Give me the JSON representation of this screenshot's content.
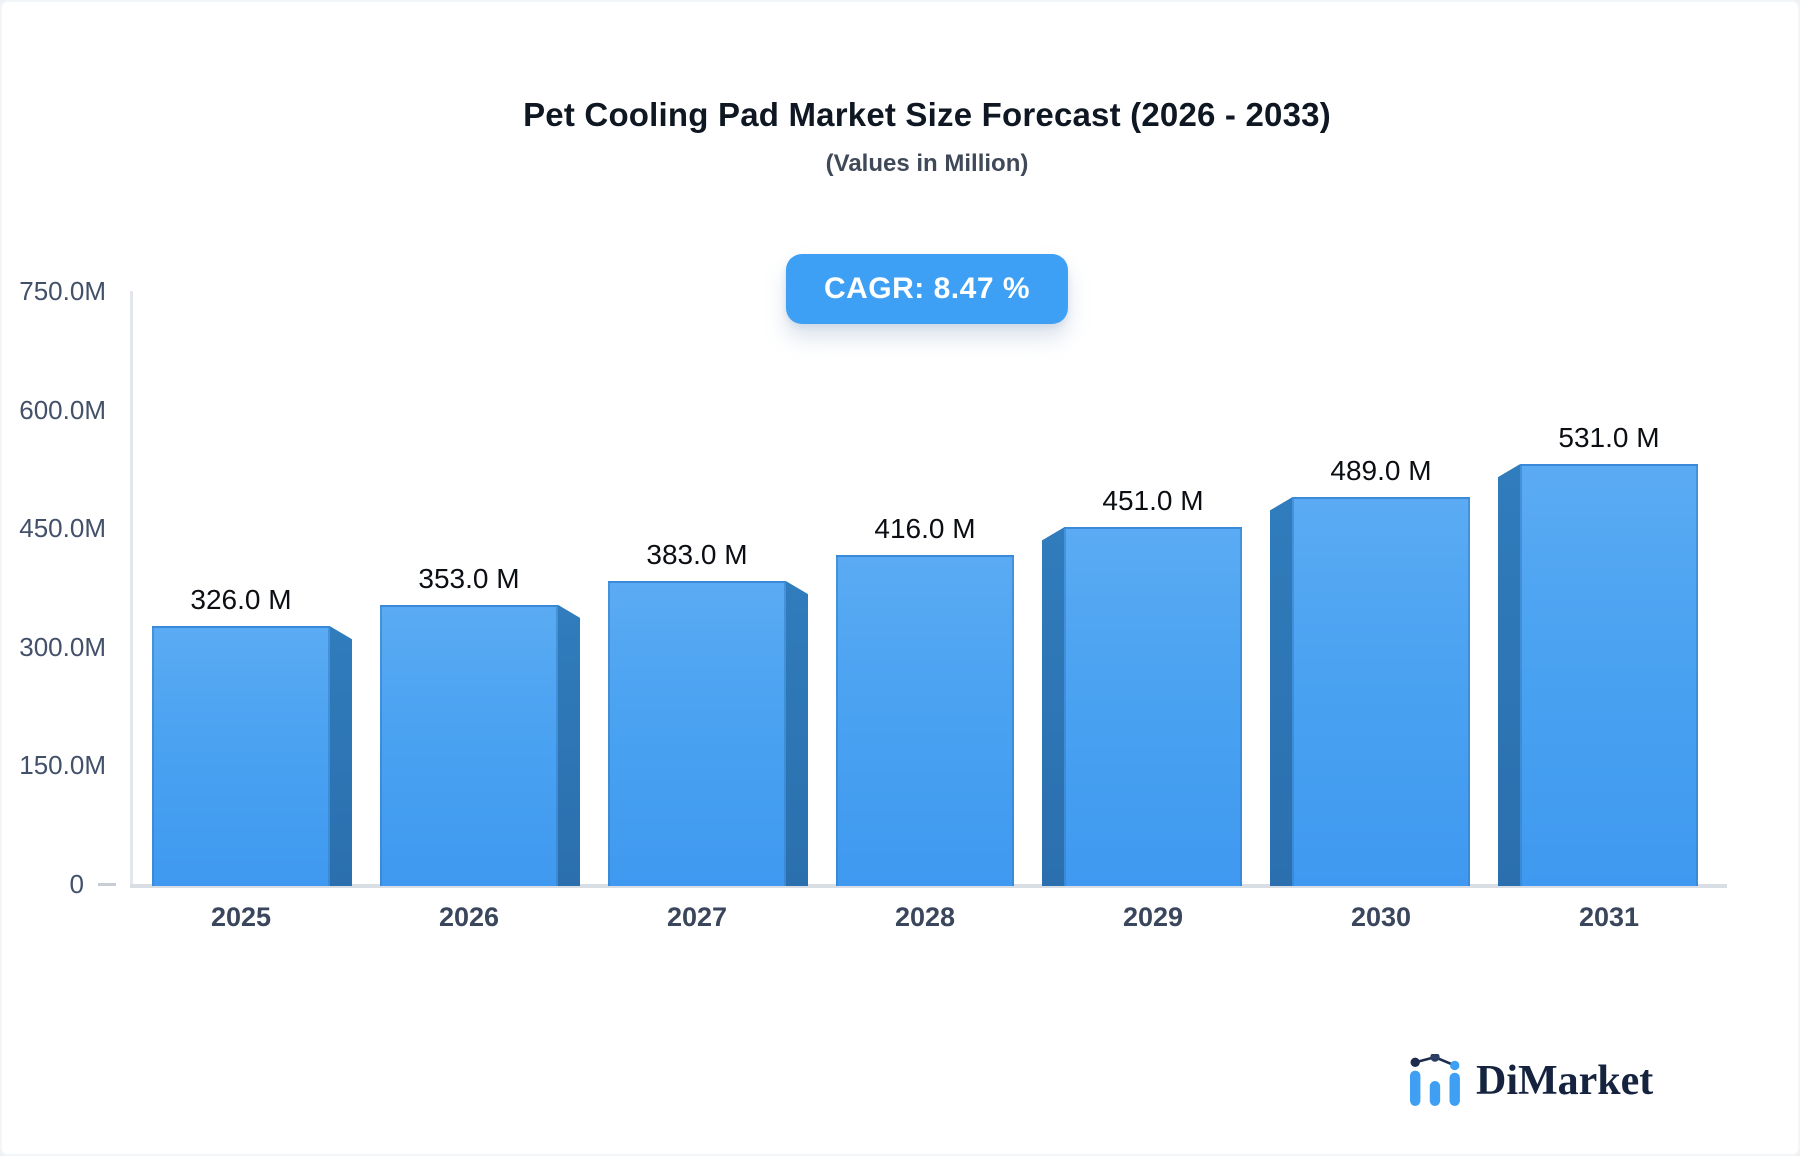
{
  "chart_data": {
    "type": "bar",
    "title": "Pet Cooling Pad Market Size Forecast (2026 - 2033)",
    "subtitle": "(Values in Million)",
    "categories": [
      "2025",
      "2026",
      "2027",
      "2028",
      "2029",
      "2030",
      "2031"
    ],
    "values": [
      326,
      353,
      383,
      416,
      451,
      489,
      531
    ],
    "value_labels": [
      "326.0 M",
      "353.0 M",
      "383.0 M",
      "416.0 M",
      "451.0 M",
      "489.0 M",
      "531.0 M"
    ],
    "y_ticks": [
      {
        "label": "750.0M",
        "value": 750
      },
      {
        "label": "600.0M",
        "value": 600
      },
      {
        "label": "450.0M",
        "value": 450
      },
      {
        "label": "300.0M",
        "value": 300
      },
      {
        "label": "150.0M",
        "value": 150
      },
      {
        "label": "0",
        "value": 0
      }
    ],
    "ylim": [
      0,
      750
    ],
    "grid": "off",
    "legend": "none",
    "bar_face_color": "#459ff1",
    "bar_side_color": "#2e76b6"
  },
  "badge": {
    "label": "CAGR: 8.47 %",
    "background": "#3da0f4",
    "text_color": "#ffffff"
  },
  "brand": {
    "name": "DiMarket",
    "icon": "bar-chart-logo-icon",
    "text_color": "#15233f",
    "icon_color": "#3f9ff3"
  }
}
